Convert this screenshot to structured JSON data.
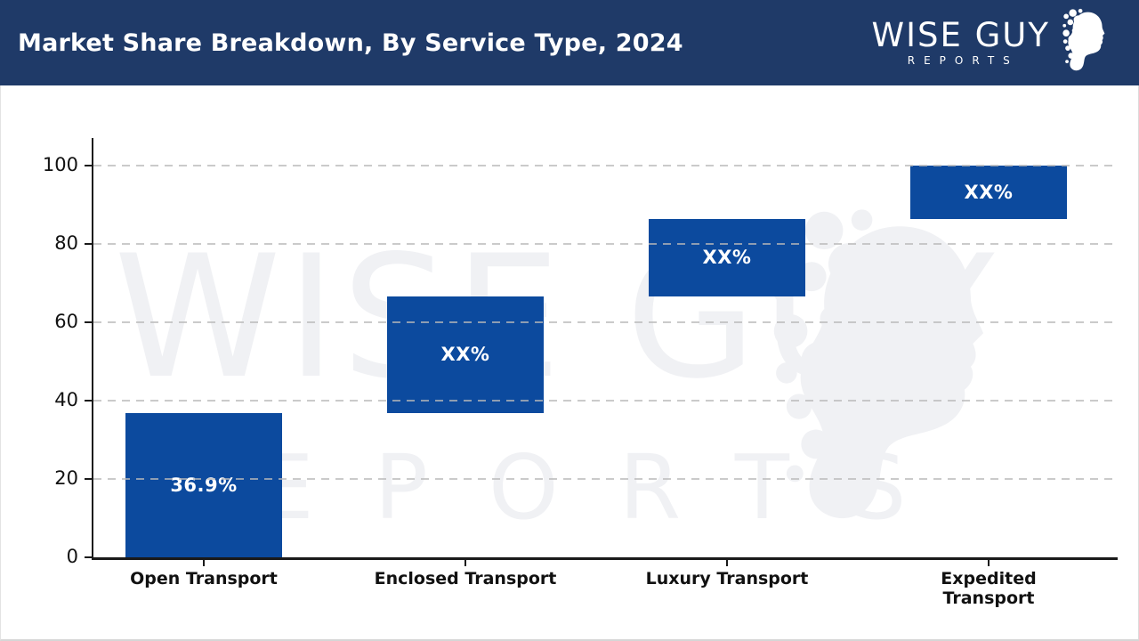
{
  "header": {
    "title": "Market Share Breakdown, By Service Type, 2024",
    "logo": {
      "line1": "WISE GUY",
      "line2": "REPORTS"
    }
  },
  "watermark": {
    "line1": "WISE GUY",
    "line2": "REPORTS"
  },
  "colors": {
    "header_bg": "#1f3a68",
    "bar": "#0c4a9e",
    "bar_label": "#ffffff",
    "axis": "#1a1a1a",
    "grid": "#bbbbbb",
    "watermark": "#f0f1f4"
  },
  "chart_data": {
    "type": "bar",
    "subtype": "floating-waterfall",
    "title": "Market Share Breakdown, By Service Type, 2024",
    "categories": [
      "Open Transport",
      "Enclosed Transport",
      "Luxury Transport",
      "Expedited Transport"
    ],
    "segments": [
      {
        "category": "Open Transport",
        "start": 0,
        "end": 36.9,
        "label": "36.9%"
      },
      {
        "category": "Enclosed Transport",
        "start": 36.9,
        "end": 66.6,
        "label": "XX%"
      },
      {
        "category": "Luxury Transport",
        "start": 66.6,
        "end": 86.4,
        "label": "XX%"
      },
      {
        "category": "Expedited Transport",
        "start": 86.4,
        "end": 100,
        "label": "XX%"
      }
    ],
    "xlabel": "",
    "ylabel": "",
    "ylim": [
      0,
      100
    ],
    "yticks": [
      0,
      20,
      40,
      60,
      80,
      100
    ],
    "grid": "horizontal-dashed",
    "legend": "none"
  }
}
